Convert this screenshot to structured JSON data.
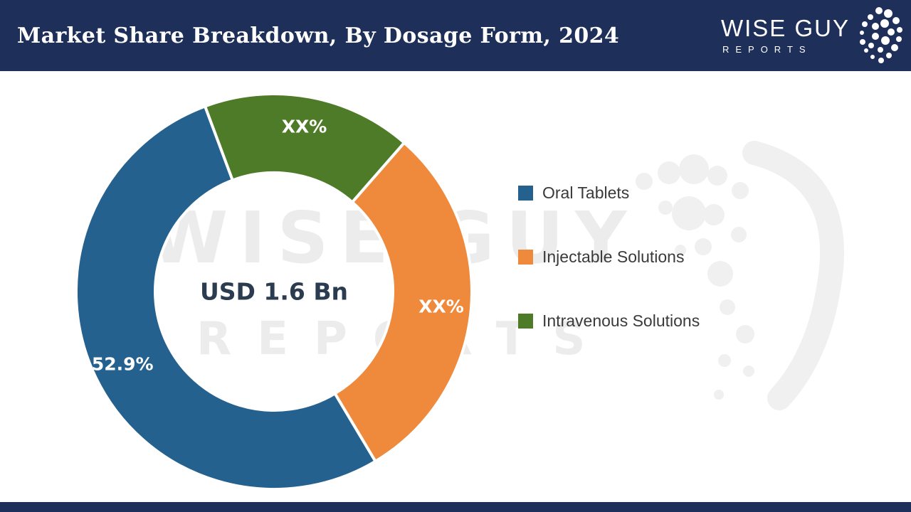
{
  "header": {
    "title": "Market Share Breakdown, By Dosage Form, 2024",
    "logo": {
      "line1": "WISE GUY",
      "line2": "REPORTS"
    }
  },
  "watermark": {
    "line1": "WISE GUY",
    "line2": "REPORTS"
  },
  "chart_data": {
    "type": "donut",
    "title": "Market Share Breakdown, By Dosage Form, 2024",
    "center_label": "USD 1.6 Bn",
    "start_angle_deg": 110.4,
    "direction": "counterclockwise",
    "legend_position": "right",
    "segments": [
      {
        "name": "Oral Tablets",
        "label": "52.9%",
        "value": 52.9,
        "estimated": false,
        "color": "#24618e",
        "label_color": "#ffffff"
      },
      {
        "name": "Injectable Solutions",
        "label": "XX%",
        "value": 30.0,
        "estimated": true,
        "color": "#ef8a3d",
        "label_color": "#ffffff"
      },
      {
        "name": "Intravenous Solutions",
        "label": "XX%",
        "value": 17.1,
        "estimated": true,
        "color": "#4e7b28",
        "label_color": "#ffffff"
      }
    ]
  },
  "colors": {
    "header_bg": "#1e2f5a",
    "footer_bg": "#1e2f5a",
    "center_text": "#2b3c50",
    "legend_text": "#3a3a3a",
    "watermark": "#ececec"
  }
}
